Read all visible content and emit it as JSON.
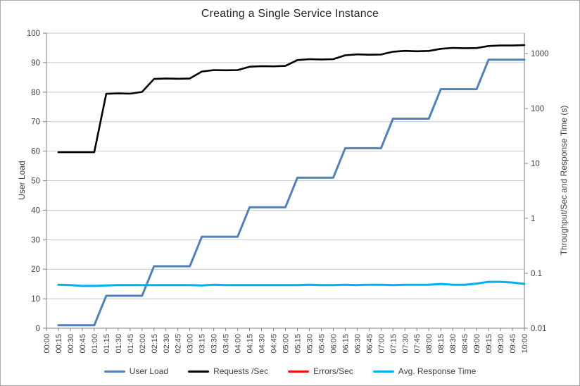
{
  "chart_data": {
    "type": "line",
    "title": "Creating a Single Service Instance",
    "grid": "horizontal",
    "legend_position": "bottom",
    "colors": {
      "gridline": "#c9c9c9",
      "axis_line": "#7f7f7f",
      "tick_text": "#3f3f3f"
    },
    "left_axis": {
      "title": "User Load",
      "scale": "linear",
      "min": 0,
      "max": 100,
      "ticks": [
        0,
        10,
        20,
        30,
        40,
        50,
        60,
        70,
        80,
        90,
        100
      ]
    },
    "right_axis": {
      "title": "Throughput/Sec and Response Time (s)",
      "scale": "log",
      "min": 0.01,
      "max_visible_tick": 1000,
      "ticks": [
        0.01,
        0.1,
        1,
        10,
        100,
        1000
      ]
    },
    "categories": [
      "00:00",
      "00:15",
      "00:30",
      "00:45",
      "01:00",
      "01:15",
      "01:30",
      "01:45",
      "02:00",
      "02:15",
      "02:30",
      "02:45",
      "03:00",
      "03:15",
      "03:30",
      "03:45",
      "04:00",
      "04:15",
      "04:30",
      "04:45",
      "05:00",
      "05:15",
      "05:30",
      "05:45",
      "06:00",
      "06:15",
      "06:30",
      "06:45",
      "07:00",
      "07:15",
      "07:30",
      "07:45",
      "08:00",
      "08:15",
      "08:30",
      "08:45",
      "09:00",
      "09:15",
      "09:30",
      "09:45",
      "10:00"
    ],
    "series": [
      {
        "name": "User Load",
        "axis": "left",
        "color": "#4f81bd",
        "stroke_width": 3,
        "values": [
          null,
          1,
          1,
          1,
          1,
          11,
          11,
          11,
          11,
          21,
          21,
          21,
          21,
          31,
          31,
          31,
          31,
          41,
          41,
          41,
          41,
          51,
          51,
          51,
          51,
          61,
          61,
          61,
          61,
          71,
          71,
          71,
          71,
          81,
          81,
          81,
          81,
          91,
          91,
          91,
          91
        ]
      },
      {
        "name": "Requests /Sec",
        "axis": "right",
        "color": "#000000",
        "stroke_width": 2.6,
        "values": [
          null,
          16,
          16,
          16,
          16,
          185,
          188,
          186,
          200,
          345,
          352,
          348,
          352,
          470,
          500,
          495,
          500,
          575,
          590,
          585,
          595,
          760,
          790,
          780,
          790,
          930,
          965,
          950,
          960,
          1080,
          1120,
          1100,
          1115,
          1220,
          1265,
          1250,
          1260,
          1370,
          1400,
          1400,
          1420
        ]
      },
      {
        "name": "Errors/Sec",
        "axis": "right",
        "color": "#ee1111",
        "stroke_width": 2.6,
        "values": []
      },
      {
        "name": "Avg. Response Time",
        "axis": "right",
        "color": "#00b0f0",
        "stroke_width": 3,
        "values": [
          null,
          0.062,
          0.061,
          0.059,
          0.059,
          0.06,
          0.061,
          0.061,
          0.061,
          0.061,
          0.061,
          0.061,
          0.061,
          0.06,
          0.062,
          0.061,
          0.061,
          0.061,
          0.061,
          0.061,
          0.061,
          0.061,
          0.062,
          0.061,
          0.061,
          0.062,
          0.061,
          0.062,
          0.062,
          0.061,
          0.062,
          0.062,
          0.062,
          0.064,
          0.062,
          0.062,
          0.065,
          0.07,
          0.07,
          0.068,
          0.064
        ]
      }
    ]
  }
}
